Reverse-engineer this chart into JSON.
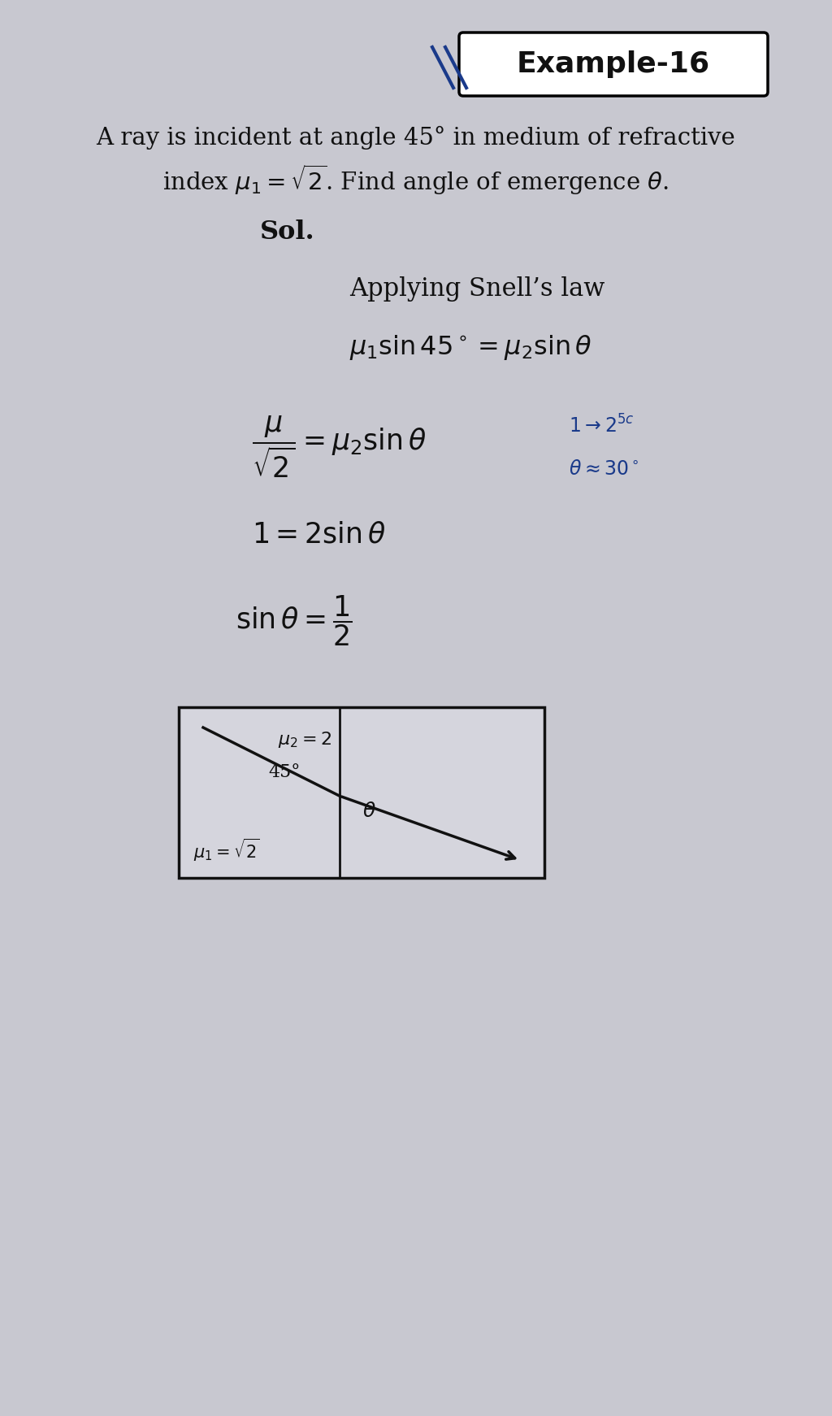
{
  "bg_color": "#c8c8d0",
  "title_box_text": "Example-16",
  "title_box_bg": "#ffffff",
  "title_box_border": "#000000",
  "text_color": "#111111",
  "handwritten_color": "#1a3a8a",
  "line1": "A ray is incident at angle 45° in medium of refractive",
  "line2": "index μ₁ = √2. Find angle of emergence θ.",
  "sol": "Sol.",
  "snell_law": "Applying Snell’s law",
  "eq1": "$\\mu_1 \\sin 45^\\circ = \\mu_2 \\sin\\theta$",
  "eq2": "$\\dfrac{\\mu}{\\sqrt{2}} = \\mu_2 \\sin\\theta$",
  "eq3": "$1 = 2\\sin\\theta$",
  "eq4": "$\\sin\\theta = \\dfrac{1}{2}$",
  "diagram_mu2": "$\\mu_2= 2$",
  "diagram_mu1": "$\\mu_1{=}\\sqrt{2}$",
  "diagram_45": "45°",
  "diagram_theta": "$\\theta$",
  "note1": "$1 \\rightarrow 2^{5c}$",
  "note2": "$\\theta \\approx 30^\\circ$",
  "deco_color": "#1a3a8a"
}
